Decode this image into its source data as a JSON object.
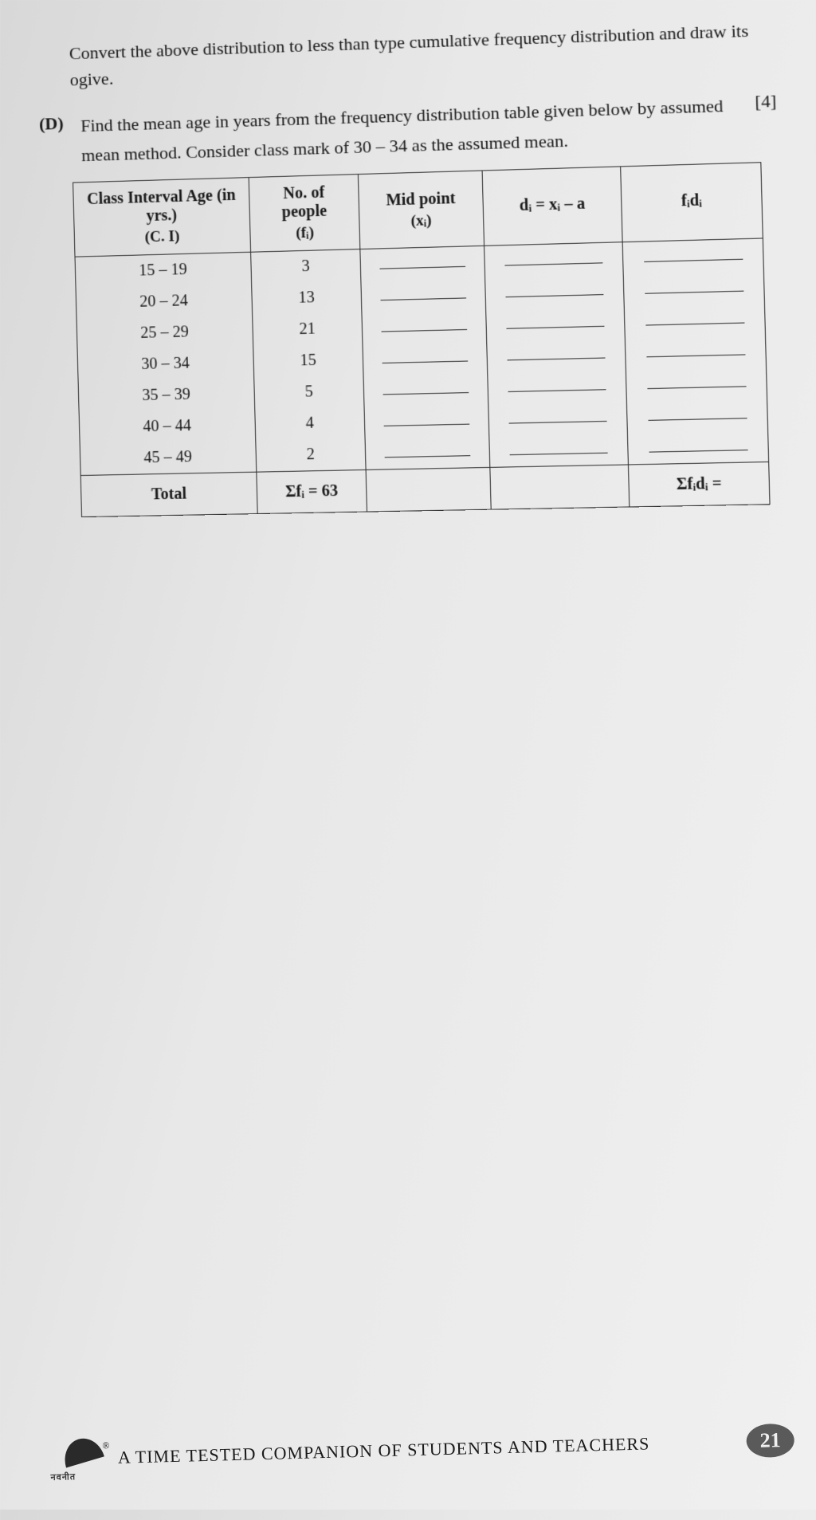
{
  "intro": "Convert the above distribution to less than type cumulative frequency distribution and draw its ogive.",
  "question": {
    "label": "(D)",
    "text": "Find the mean age in years from the frequency distribution table given below by assumed",
    "line2": "mean method. Consider class mark of 30 – 34 as the assumed mean.",
    "marks": "[4]"
  },
  "table": {
    "headers": {
      "ci_main": "Class Interval Age (in yrs.)",
      "ci_sub": "(C. I)",
      "f_main": "No. of people",
      "f_sub": "(fᵢ)",
      "x_main": "Mid point",
      "x_sub": "(xᵢ)",
      "d_main": "dᵢ = xᵢ – a",
      "fd_main": "fᵢdᵢ"
    },
    "rows": [
      {
        "ci": "15 – 19",
        "f": "3"
      },
      {
        "ci": "20 – 24",
        "f": "13"
      },
      {
        "ci": "25 – 29",
        "f": "21"
      },
      {
        "ci": "30 – 34",
        "f": "15"
      },
      {
        "ci": "35 – 39",
        "f": "5"
      },
      {
        "ci": "40 – 44",
        "f": "4"
      },
      {
        "ci": "45 – 49",
        "f": "2"
      }
    ],
    "total": {
      "label": "Total",
      "sum_f": "Σfᵢ = 63",
      "sum_fd": "Σfᵢdᵢ ="
    }
  },
  "footer": {
    "logo_text": "नवनीत",
    "reg": "®",
    "companion": "A TIME TESTED COMPANION OF STUDENTS AND TEACHERS",
    "page": "21"
  },
  "styling": {
    "body_bg_start": "#d8d8d8",
    "body_bg_end": "#f0f0f0",
    "text_color": "#1a1a1a",
    "border_color": "#2a2a2a",
    "badge_bg": "#5a5a5a",
    "badge_color": "#f0f0f0",
    "font_body": 22,
    "font_table": 20
  }
}
